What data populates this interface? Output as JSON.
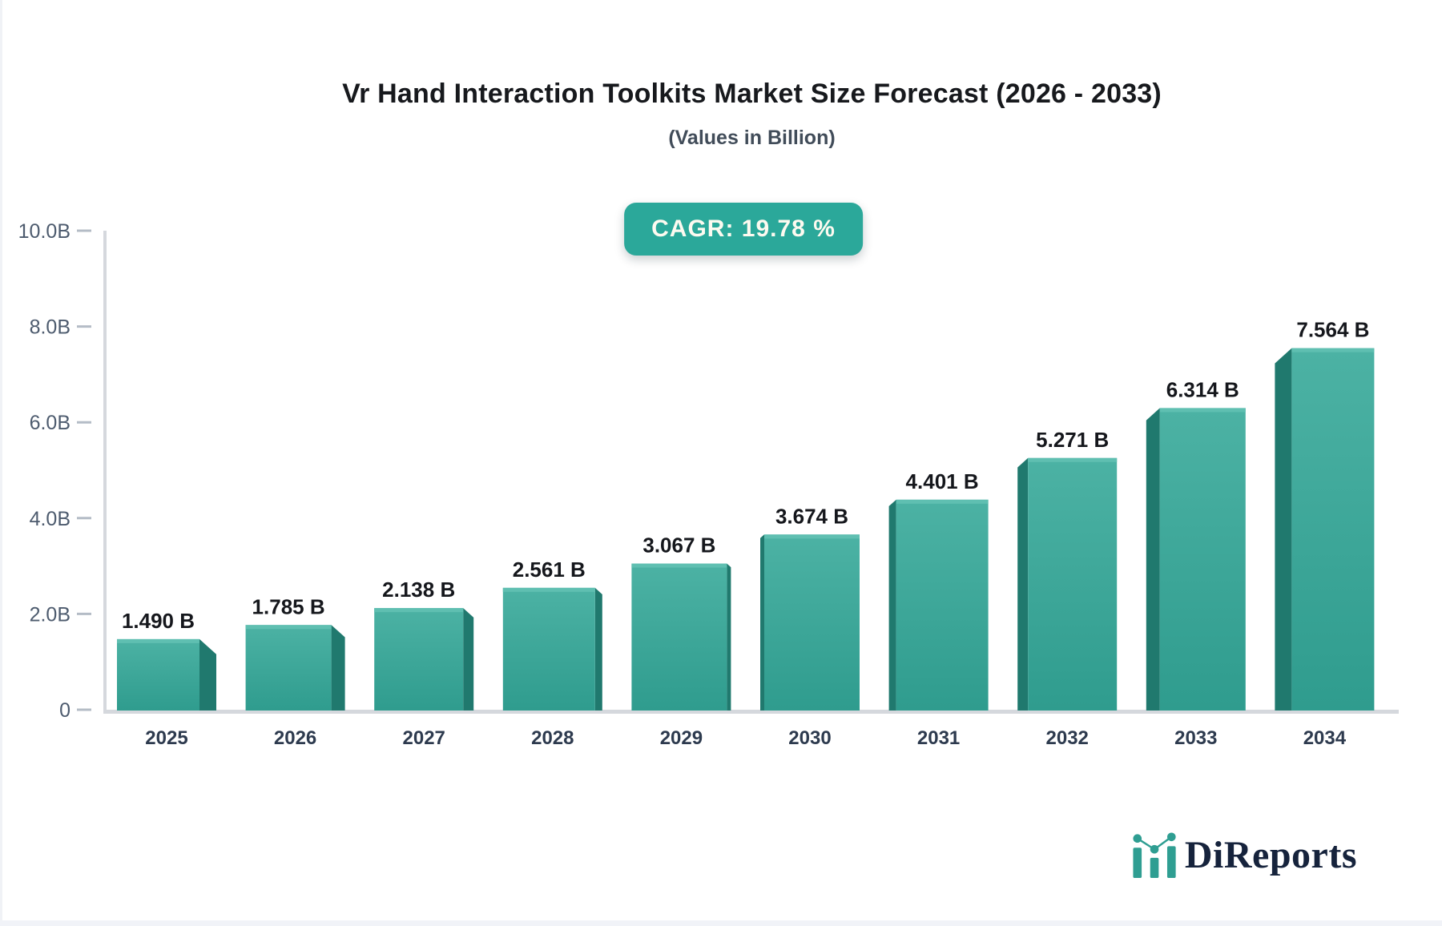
{
  "header": {
    "title": "Vr Hand Interaction Toolkits Market Size Forecast (2026 - 2033)",
    "subtitle": "(Values in Billion)"
  },
  "badge": {
    "label": "CAGR: 19.78 %"
  },
  "chart_data": {
    "type": "bar",
    "title": "Vr Hand Interaction Toolkits Market Size Forecast (2026 - 2033)",
    "subtitle": "(Values in Billion)",
    "cagr_percent": 19.78,
    "categories": [
      "2025",
      "2026",
      "2027",
      "2028",
      "2029",
      "2030",
      "2031",
      "2032",
      "2033",
      "2034"
    ],
    "values": [
      1.49,
      1.785,
      2.138,
      2.561,
      3.067,
      3.674,
      4.401,
      5.271,
      6.314,
      7.564
    ],
    "value_labels": [
      "1.490 B",
      "1.785 B",
      "2.138 B",
      "2.561 B",
      "3.067 B",
      "3.674 B",
      "4.401 B",
      "5.271 B",
      "6.314 B",
      "7.564 B"
    ],
    "xlabel": "",
    "ylabel": "",
    "ylim": [
      0,
      10
    ],
    "y_ticks": [
      {
        "label": "10.0B",
        "value": 10
      },
      {
        "label": "8.0B",
        "value": 8
      },
      {
        "label": "6.0B",
        "value": 6
      },
      {
        "label": "4.0B",
        "value": 4
      },
      {
        "label": "2.0B",
        "value": 2
      },
      {
        "label": "0",
        "value": 0
      }
    ],
    "grid": false,
    "legend": false,
    "bar_style": "3d-perspective-teal"
  },
  "logo": {
    "text": "DiReports",
    "icon": "mini-bar-chart-icon"
  },
  "colors": {
    "bar_face_top": "#4cb2a4",
    "bar_face_bottom": "#2f9c8e",
    "bar_top_edge": "#5fbfb1",
    "bar_side": "#20796e",
    "badge_bg": "#2ba89a",
    "badge_text": "#fdfaf0",
    "title_text": "#17191d",
    "subtitle_text": "#414c59",
    "tick_text": "#4d5b6e",
    "year_text": "#2d3a4e",
    "value_text": "#15171c",
    "axis_line": "#d5d8dd",
    "tick_dash": "#b4bcc6",
    "logo_navy": "#16233c",
    "logo_teal": "#2f9e92"
  }
}
